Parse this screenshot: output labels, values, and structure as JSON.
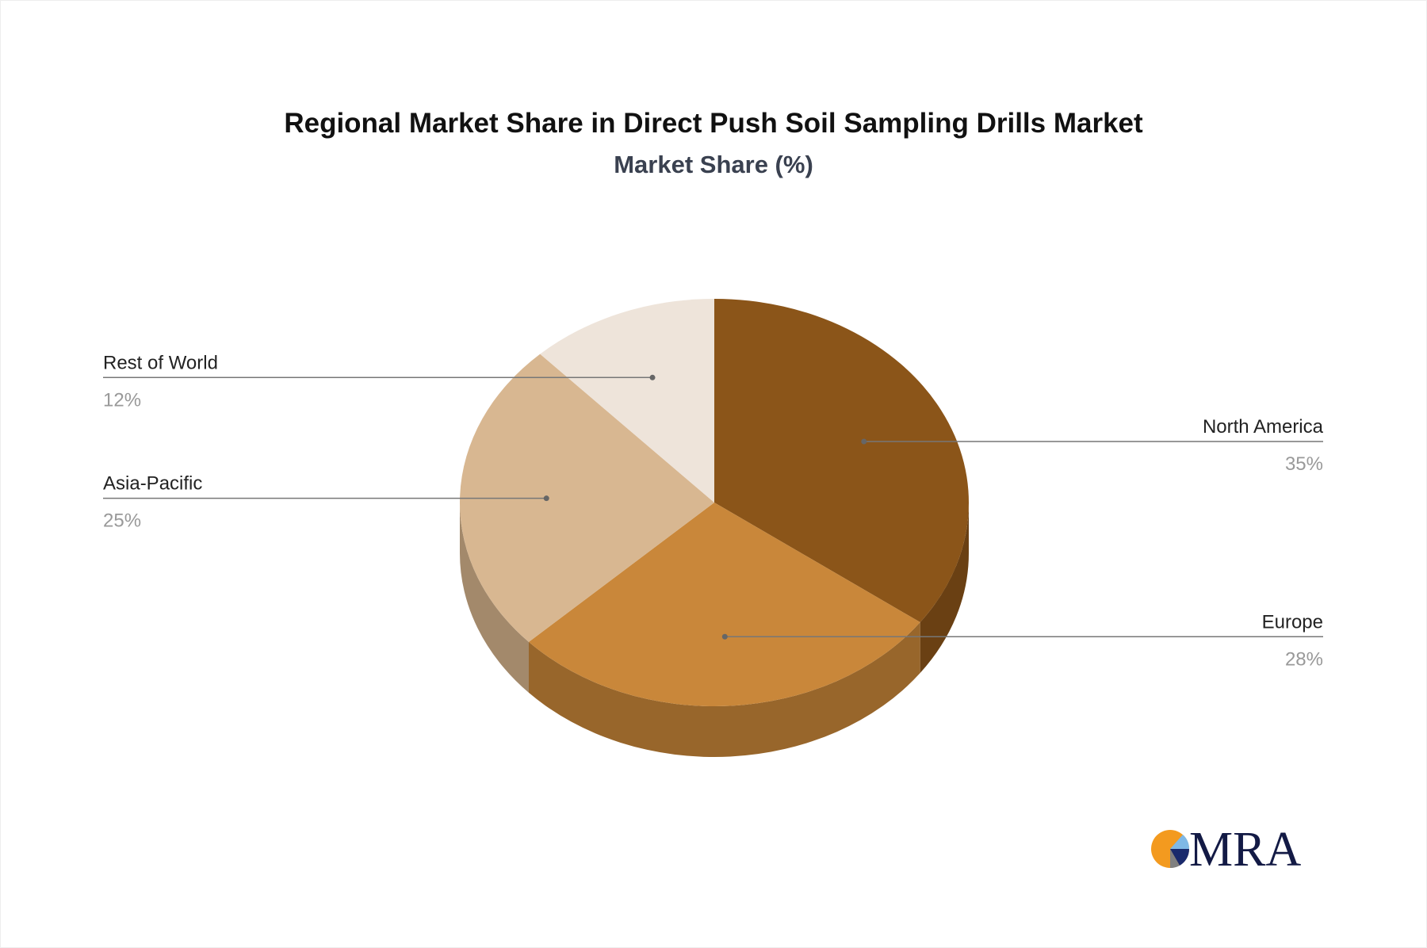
{
  "chart_data": {
    "type": "pie",
    "style": "3d",
    "title": "Regional Market Share in Direct Push Soil Sampling Drills Market",
    "subtitle": "Market Share (%)",
    "start": "12 o'clock, clockwise",
    "slices": [
      {
        "label": "North America",
        "value": 35,
        "display": "35%",
        "color": "#8B5519",
        "side_color": "#6A4013"
      },
      {
        "label": "Europe",
        "value": 28,
        "display": "28%",
        "color": "#C9873A",
        "side_color": "#98662B"
      },
      {
        "label": "Asia-Pacific",
        "value": 25,
        "display": "25%",
        "color": "#D8B791",
        "side_color": "#A3896B"
      },
      {
        "label": "Rest of World",
        "value": 12,
        "display": "12%",
        "color": "#EEE4DA",
        "side_color": "#B8AFA5"
      }
    ]
  },
  "logo": {
    "text": "MRA",
    "colors": [
      "#F39A1F",
      "#1A2A6C",
      "#7FB8E6",
      "#808080"
    ]
  }
}
